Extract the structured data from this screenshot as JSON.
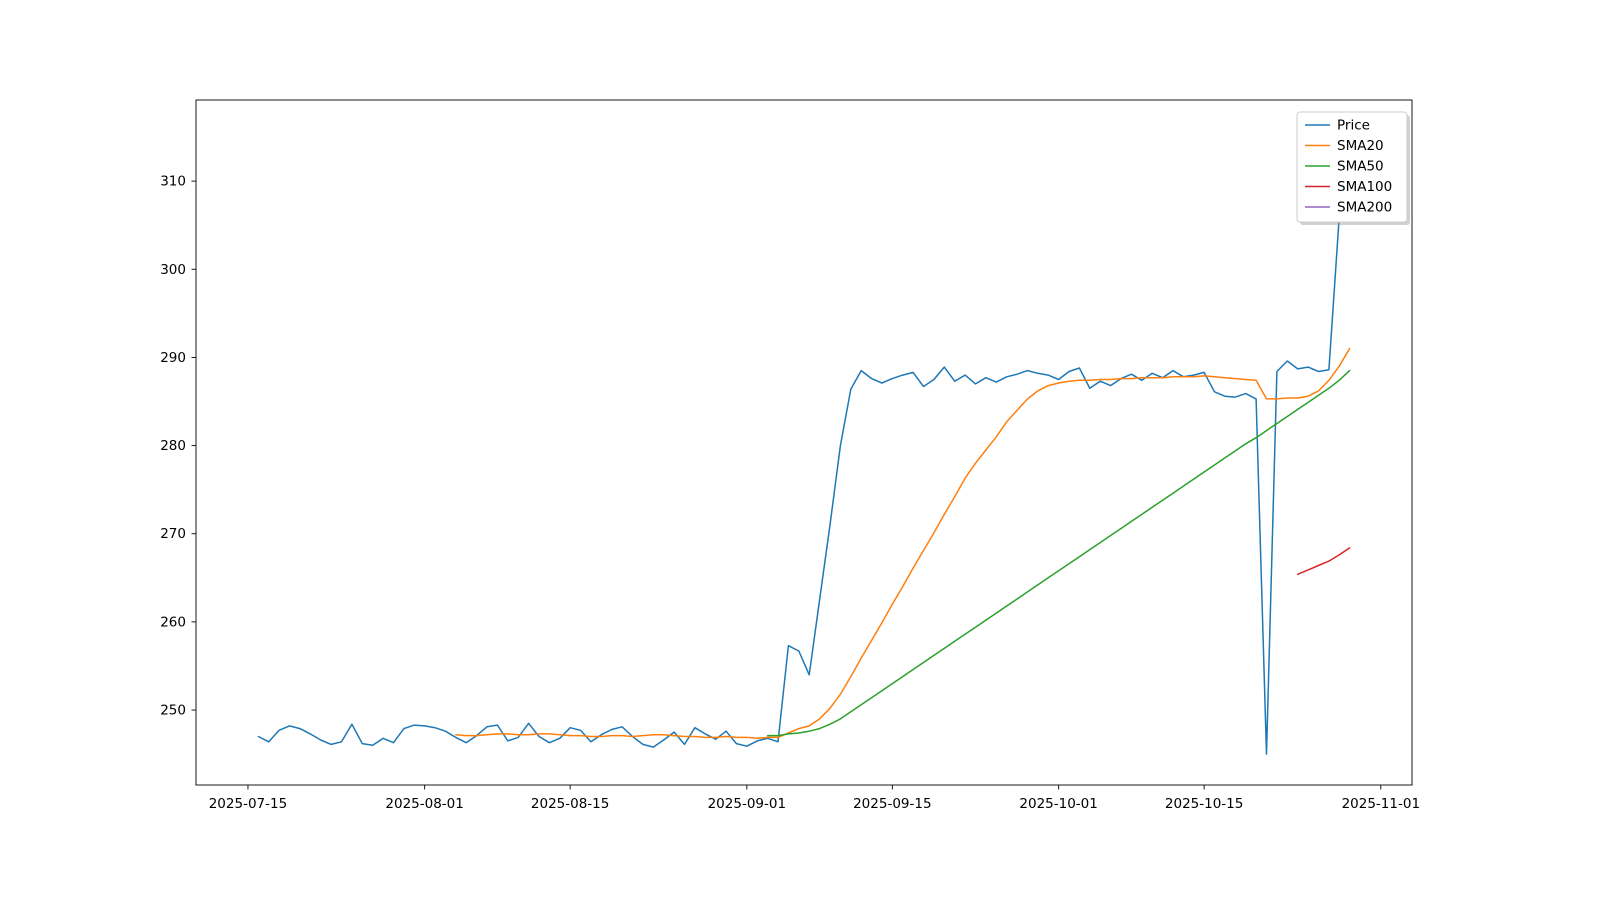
{
  "figure": {
    "background": "#ffffff",
    "plot_background": "#ffffff"
  },
  "chart_data": {
    "type": "line",
    "title": "",
    "xlabel": "",
    "ylabel": "",
    "grid": false,
    "legend_position": "upper right",
    "axis_color": "#000000",
    "xlim": [
      "2025-07-10",
      "2025-11-04"
    ],
    "ylim": [
      241.5,
      319.2
    ],
    "x_ticks": [
      "2025-07-15",
      "2025-08-01",
      "2025-08-15",
      "2025-09-01",
      "2025-09-15",
      "2025-10-01",
      "2025-10-15",
      "2025-11-01"
    ],
    "y_ticks": [
      250,
      260,
      270,
      280,
      290,
      300,
      310
    ],
    "dates": [
      "2025-07-16",
      "2025-07-17",
      "2025-07-18",
      "2025-07-19",
      "2025-07-20",
      "2025-07-21",
      "2025-07-22",
      "2025-07-23",
      "2025-07-24",
      "2025-07-25",
      "2025-07-26",
      "2025-07-27",
      "2025-07-28",
      "2025-07-29",
      "2025-07-30",
      "2025-07-31",
      "2025-08-01",
      "2025-08-02",
      "2025-08-03",
      "2025-08-04",
      "2025-08-05",
      "2025-08-06",
      "2025-08-07",
      "2025-08-08",
      "2025-08-09",
      "2025-08-10",
      "2025-08-11",
      "2025-08-12",
      "2025-08-13",
      "2025-08-14",
      "2025-08-15",
      "2025-08-16",
      "2025-08-17",
      "2025-08-18",
      "2025-08-19",
      "2025-08-20",
      "2025-08-21",
      "2025-08-22",
      "2025-08-23",
      "2025-08-24",
      "2025-08-25",
      "2025-08-26",
      "2025-08-27",
      "2025-08-28",
      "2025-08-29",
      "2025-08-30",
      "2025-08-31",
      "2025-09-01",
      "2025-09-02",
      "2025-09-03",
      "2025-09-04",
      "2025-09-05",
      "2025-09-06",
      "2025-09-07",
      "2025-09-08",
      "2025-09-09",
      "2025-09-10",
      "2025-09-11",
      "2025-09-12",
      "2025-09-13",
      "2025-09-14",
      "2025-09-15",
      "2025-09-16",
      "2025-09-17",
      "2025-09-18",
      "2025-09-19",
      "2025-09-20",
      "2025-09-21",
      "2025-09-22",
      "2025-09-23",
      "2025-09-24",
      "2025-09-25",
      "2025-09-26",
      "2025-09-27",
      "2025-09-28",
      "2025-09-29",
      "2025-09-30",
      "2025-10-01",
      "2025-10-02",
      "2025-10-03",
      "2025-10-04",
      "2025-10-05",
      "2025-10-06",
      "2025-10-07",
      "2025-10-08",
      "2025-10-09",
      "2025-10-10",
      "2025-10-11",
      "2025-10-12",
      "2025-10-13",
      "2025-10-14",
      "2025-10-15",
      "2025-10-16",
      "2025-10-17",
      "2025-10-18",
      "2025-10-19",
      "2025-10-20",
      "2025-10-21",
      "2025-10-22",
      "2025-10-23",
      "2025-10-24",
      "2025-10-25",
      "2025-10-26",
      "2025-10-27",
      "2025-10-28",
      "2025-10-29"
    ],
    "series": [
      {
        "name": "Price",
        "color": "#1f77b4",
        "start": 0,
        "values": [
          247.0,
          246.4,
          247.7,
          248.2,
          247.9,
          247.3,
          246.6,
          246.1,
          246.4,
          248.4,
          246.2,
          246.0,
          246.8,
          246.3,
          247.9,
          248.3,
          248.2,
          248.0,
          247.6,
          246.9,
          246.3,
          247.1,
          248.1,
          248.3,
          246.5,
          246.9,
          248.5,
          247.0,
          246.3,
          246.8,
          248.0,
          247.7,
          246.4,
          247.2,
          247.8,
          248.1,
          247.0,
          246.1,
          245.8,
          246.6,
          247.5,
          246.1,
          248.0,
          247.3,
          246.7,
          247.6,
          246.2,
          245.9,
          246.5,
          246.8,
          246.4,
          257.3,
          256.7,
          254.0,
          262.5,
          271.0,
          280.0,
          286.4,
          288.5,
          287.6,
          287.1,
          287.6,
          288.0,
          288.3,
          286.7,
          287.5,
          288.9,
          287.3,
          288.0,
          287.0,
          287.7,
          287.2,
          287.8,
          288.1,
          288.5,
          288.2,
          288.0,
          287.5,
          288.4,
          288.8,
          286.5,
          287.3,
          286.8,
          287.6,
          288.1,
          287.4,
          288.2,
          287.7,
          288.5,
          287.8,
          288.0,
          288.3,
          286.1,
          285.6,
          285.5,
          285.9,
          285.3,
          245.0,
          288.4,
          289.6,
          288.7,
          288.9,
          288.4,
          288.6,
          305.9,
          315.8
        ]
      },
      {
        "name": "SMA20",
        "color": "#ff7f0e",
        "start": 19,
        "values": [
          247.2,
          247.1,
          247.1,
          247.2,
          247.3,
          247.3,
          247.2,
          247.2,
          247.3,
          247.3,
          247.2,
          247.1,
          247.1,
          247.0,
          247.0,
          247.1,
          247.1,
          247.0,
          247.1,
          247.2,
          247.2,
          247.1,
          247.0,
          247.0,
          246.9,
          246.9,
          247.0,
          246.9,
          246.9,
          246.8,
          246.9,
          246.9,
          247.4,
          247.9,
          248.2,
          249.0,
          250.2,
          251.8,
          253.8,
          255.9,
          257.9,
          259.9,
          262.0,
          264.0,
          266.1,
          268.1,
          270.1,
          272.2,
          274.2,
          276.3,
          278.0,
          279.5,
          281.0,
          282.7,
          284.0,
          285.3,
          286.2,
          286.8,
          287.1,
          287.3,
          287.4,
          287.4,
          287.5,
          287.5,
          287.6,
          287.6,
          287.7,
          287.7,
          287.7,
          287.8,
          287.8,
          287.8,
          287.9,
          287.8,
          287.7,
          287.6,
          287.5,
          287.4,
          285.3,
          285.3,
          285.4,
          285.4,
          285.6,
          286.2,
          287.4,
          289.0,
          291.0
        ]
      },
      {
        "name": "SMA50",
        "color": "#2ca02c",
        "start": 49,
        "values": [
          247.1,
          247.1,
          247.3,
          247.4,
          247.6,
          247.9,
          248.4,
          249.0,
          249.8,
          250.6,
          251.4,
          252.2,
          253.0,
          253.8,
          254.6,
          255.4,
          256.2,
          257.0,
          257.8,
          258.6,
          259.4,
          260.2,
          261.0,
          261.8,
          262.6,
          263.4,
          264.2,
          265.0,
          265.8,
          266.6,
          267.4,
          268.2,
          269.0,
          269.8,
          270.6,
          271.4,
          272.2,
          273.0,
          273.8,
          274.6,
          275.4,
          276.2,
          277.0,
          277.8,
          278.6,
          279.4,
          280.2,
          280.9,
          281.7,
          282.5,
          283.3,
          284.1,
          284.9,
          285.7,
          286.5,
          287.4,
          288.5
        ]
      },
      {
        "name": "SMA100",
        "color": "#d62728",
        "start": 100,
        "values": [
          265.4,
          265.9,
          266.4,
          266.9,
          267.6,
          268.4
        ]
      },
      {
        "name": "SMA200",
        "color": "#9467bd",
        "start": 0,
        "values": []
      }
    ]
  }
}
